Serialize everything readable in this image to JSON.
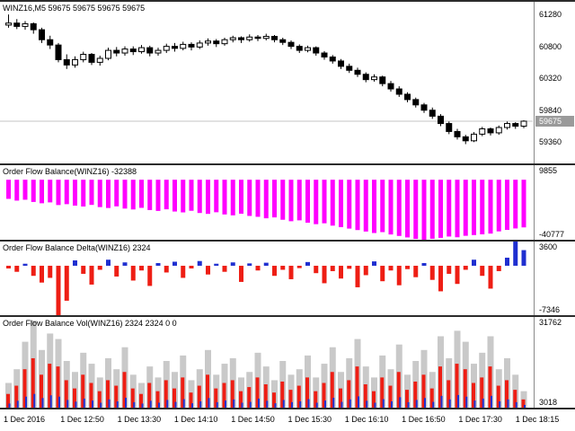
{
  "window": {
    "app": "MetaTrader chart",
    "symbol": "WINZ16",
    "timeframe": "M5"
  },
  "colors": {
    "magenta": "#FF00FF",
    "red": "#EE1E14",
    "blue": "#1F2FD0",
    "gray_volume": "#C9C9C9",
    "grid_line": "#C4C4C4",
    "candle_outline": "#000000",
    "bull_fill": "#FFFFFF",
    "bear_fill": "#000000",
    "price_tag_bg": "#9A9A9A",
    "price_tag_text": "#FFFFFF"
  },
  "time_axis": {
    "labels": [
      "1 Dec 2016",
      "1 Dec 12:50",
      "1 Dec 13:30",
      "1 Dec 14:10",
      "1 Dec 14:50",
      "1 Dec 15:30",
      "1 Dec 16:10",
      "1 Dec 16:50",
      "1 Dec 17:30",
      "1 Dec 18:15"
    ]
  },
  "chart_data": [
    {
      "type": "candlestick",
      "label": "WINZ16,M5 59675 59675 59675 59675",
      "symbol": "WINZ16",
      "timeframe": "M5",
      "ohlc_current": [
        59675,
        59675,
        59675,
        59675
      ],
      "current_price": 59675,
      "current_price_label": "59675",
      "domain": [
        59040,
        61470
      ],
      "y_ticks": [
        "61280",
        "60800",
        "60320",
        "59840",
        "59360"
      ],
      "candles": [
        [
          61120,
          61280,
          61080,
          61150
        ],
        [
          61150,
          61210,
          61060,
          61100
        ],
        [
          61100,
          61180,
          61050,
          61140
        ],
        [
          61140,
          61160,
          60990,
          61050
        ],
        [
          61050,
          61080,
          60850,
          60900
        ],
        [
          60900,
          60960,
          60760,
          60820
        ],
        [
          60820,
          60850,
          60560,
          60600
        ],
        [
          60600,
          60680,
          60460,
          60520
        ],
        [
          60520,
          60650,
          60480,
          60600
        ],
        [
          60600,
          60720,
          60560,
          60680
        ],
        [
          60680,
          60700,
          60520,
          60560
        ],
        [
          60560,
          60660,
          60510,
          60620
        ],
        [
          60620,
          60780,
          60590,
          60740
        ],
        [
          60740,
          60790,
          60650,
          60700
        ],
        [
          60700,
          60800,
          60660,
          60760
        ],
        [
          60760,
          60800,
          60670,
          60720
        ],
        [
          60720,
          60820,
          60690,
          60780
        ],
        [
          60780,
          60810,
          60650,
          60700
        ],
        [
          60700,
          60780,
          60660,
          60740
        ],
        [
          60740,
          60840,
          60700,
          60800
        ],
        [
          60800,
          60850,
          60720,
          60770
        ],
        [
          60770,
          60870,
          60740,
          60830
        ],
        [
          60830,
          60860,
          60740,
          60790
        ],
        [
          60790,
          60890,
          60760,
          60850
        ],
        [
          60850,
          60920,
          60810,
          60880
        ],
        [
          60880,
          60910,
          60790,
          60840
        ],
        [
          60840,
          60930,
          60810,
          60900
        ],
        [
          60900,
          60960,
          60860,
          60930
        ],
        [
          60930,
          60950,
          60850,
          60900
        ],
        [
          60900,
          60980,
          60870,
          60940
        ],
        [
          60940,
          60970,
          60880,
          60920
        ],
        [
          60920,
          60990,
          60890,
          60950
        ],
        [
          60950,
          60970,
          60860,
          60900
        ],
        [
          60900,
          60930,
          60820,
          60860
        ],
        [
          60860,
          60890,
          60760,
          60800
        ],
        [
          60800,
          60830,
          60700,
          60740
        ],
        [
          60740,
          60810,
          60710,
          60780
        ],
        [
          60780,
          60800,
          60660,
          60700
        ],
        [
          60700,
          60730,
          60600,
          60640
        ],
        [
          60640,
          60670,
          60540,
          60580
        ],
        [
          60580,
          60610,
          60460,
          60500
        ],
        [
          60500,
          60540,
          60400,
          60440
        ],
        [
          60440,
          60480,
          60340,
          60380
        ],
        [
          60380,
          60410,
          60260,
          60300
        ],
        [
          60300,
          60380,
          60270,
          60340
        ],
        [
          60340,
          60360,
          60200,
          60240
        ],
        [
          60240,
          60280,
          60120,
          60160
        ],
        [
          60160,
          60200,
          60040,
          60080
        ],
        [
          60080,
          60110,
          59960,
          60000
        ],
        [
          60000,
          60030,
          59880,
          59920
        ],
        [
          59920,
          59950,
          59800,
          59840
        ],
        [
          59840,
          59880,
          59710,
          59750
        ],
        [
          59750,
          59780,
          59600,
          59640
        ],
        [
          59640,
          59670,
          59480,
          59520
        ],
        [
          59520,
          59560,
          59400,
          59440
        ],
        [
          59440,
          59470,
          59330,
          59380
        ],
        [
          59380,
          59510,
          59360,
          59480
        ],
        [
          59480,
          59590,
          59450,
          59560
        ],
        [
          59560,
          59580,
          59460,
          59500
        ],
        [
          59500,
          59610,
          59470,
          59580
        ],
        [
          59580,
          59670,
          59550,
          59640
        ],
        [
          59640,
          59660,
          59560,
          59600
        ],
        [
          59600,
          59690,
          59570,
          59675
        ]
      ]
    },
    {
      "type": "bar",
      "name": "Order Flow Balance",
      "label": "Order Flow Balance(WINZ16) -32388",
      "current_value": -32388,
      "ymax": 9855,
      "ymin": -40777,
      "ymax_label": "9855",
      "ymin_label": "-40777",
      "values": [
        -13000,
        -14200,
        -13600,
        -15100,
        -16000,
        -15400,
        -17200,
        -16600,
        -17600,
        -18200,
        -17100,
        -18600,
        -19200,
        -18100,
        -19600,
        -20200,
        -19100,
        -20600,
        -21200,
        -20100,
        -21600,
        -22200,
        -21100,
        -22600,
        -23200,
        -22100,
        -23600,
        -24200,
        -23100,
        -24600,
        -25200,
        -26200,
        -25600,
        -27200,
        -28200,
        -27600,
        -29200,
        -30200,
        -29600,
        -31200,
        -32200,
        -33200,
        -34200,
        -35200,
        -36200,
        -35600,
        -37200,
        -38200,
        -39200,
        -40200,
        -40777,
        -40100,
        -39500,
        -38600,
        -39100,
        -38100,
        -37600,
        -37100,
        -36600,
        -35100,
        -34100,
        -33100,
        -32388
      ]
    },
    {
      "type": "bar",
      "name": "Order Flow Balance Delta",
      "label": "Order Flow Balance Delta(WINZ16) 2324",
      "current_value": 2324,
      "ymax": 3600,
      "ymin": -7346,
      "ymax_label": "3600",
      "ymin_label": "-7346",
      "values": [
        -400,
        -900,
        300,
        -1500,
        -2500,
        -1800,
        -7346,
        -5200,
        800,
        -1200,
        -2800,
        -600,
        900,
        -1600,
        500,
        -2200,
        -700,
        -3000,
        400,
        -1000,
        600,
        -1800,
        -400,
        700,
        -1300,
        300,
        -900,
        500,
        -2400,
        350,
        -700,
        450,
        -1500,
        -600,
        -2000,
        -350,
        550,
        -1100,
        -2600,
        -800,
        -1900,
        -450,
        -3200,
        -1400,
        650,
        -2300,
        -700,
        -2900,
        -500,
        -1700,
        400,
        -2100,
        -3800,
        -1200,
        -2700,
        -600,
        900,
        -1500,
        -3400,
        -800,
        1200,
        3600,
        2324
      ]
    },
    {
      "type": "bar",
      "name": "Order Flow Balance Vol",
      "label": "Order Flow Balance Vol(WINZ16) 2324 2324 0 0",
      "current_values": [
        2324,
        2324,
        0,
        0
      ],
      "ymax": 31762,
      "ymin": 3018,
      "ymax_label": "31762",
      "ymin_label": "3018",
      "totals": [
        9000,
        14000,
        24000,
        31762,
        21000,
        27000,
        25000,
        17000,
        13000,
        20000,
        16000,
        11000,
        18000,
        14000,
        22000,
        12000,
        9000,
        15000,
        11000,
        17000,
        13000,
        19000,
        10000,
        14000,
        21000,
        12000,
        16000,
        18000,
        11000,
        13000,
        20000,
        15000,
        10000,
        17000,
        12000,
        14000,
        19000,
        11000,
        16000,
        22000,
        13000,
        18000,
        25000,
        15000,
        11000,
        19000,
        14000,
        23000,
        12000,
        17000,
        21000,
        13000,
        26000,
        18000,
        28000,
        24000,
        16000,
        20000,
        26000,
        14000,
        18000,
        12000,
        6000
      ],
      "sell": [
        5000,
        8000,
        14000,
        18000,
        12000,
        16000,
        15000,
        10000,
        7000,
        12000,
        9000,
        6000,
        10000,
        8000,
        13000,
        7000,
        5000,
        9000,
        6000,
        10000,
        7000,
        11000,
        5500,
        8000,
        12000,
        7000,
        9000,
        10000,
        6000,
        7500,
        11000,
        8500,
        5500,
        9500,
        6500,
        8000,
        11000,
        6000,
        9000,
        13000,
        7000,
        10000,
        15000,
        8500,
        6000,
        11000,
        8000,
        13000,
        6500,
        9500,
        12000,
        7000,
        15000,
        10000,
        16000,
        14000,
        9000,
        11000,
        15000,
        8000,
        10000,
        6500,
        3000
      ],
      "buy": [
        1500,
        2500,
        4000,
        5000,
        3500,
        4500,
        4000,
        2800,
        2200,
        3300,
        2600,
        1800,
        3000,
        2300,
        3600,
        2000,
        1500,
        2500,
        1800,
        2800,
        2100,
        3100,
        1600,
        2300,
        3500,
        2000,
        2600,
        3000,
        1800,
        2100,
        3300,
        2500,
        1600,
        2800,
        2000,
        2300,
        3100,
        1800,
        2600,
        3600,
        2100,
        3000,
        4100,
        2500,
        1800,
        3100,
        2300,
        3800,
        2000,
        2800,
        3500,
        2100,
        4300,
        3000,
        4600,
        4000,
        2600,
        3300,
        4300,
        2300,
        3000,
        2000,
        1000
      ]
    }
  ]
}
